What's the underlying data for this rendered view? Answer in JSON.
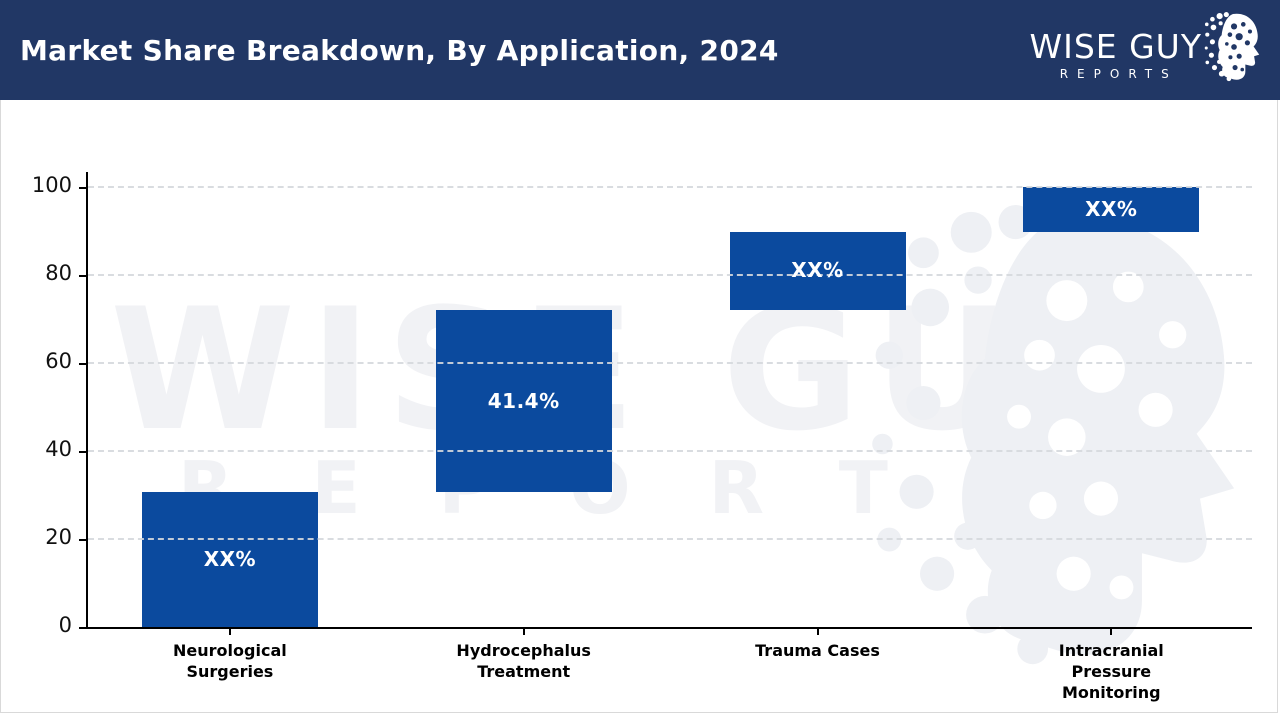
{
  "header": {
    "title": "Market Share Breakdown, By Application, 2024",
    "background": "#213765",
    "text_color": "#ffffff",
    "logo": {
      "line1": "WISE GUY",
      "line2": "REPORTS"
    }
  },
  "watermark": {
    "line1": "WISE GUY",
    "line2": "REPORTS"
  },
  "chart_data": {
    "type": "bar",
    "subtype": "floating-waterfall",
    "title": "Market Share Breakdown, By Application, 2024",
    "categories": [
      "Neurological Surgeries",
      "Hydrocephalus Treatment",
      "Trauma Cases",
      "Intracranial Pressure Monitoring"
    ],
    "category_lines": [
      [
        "Neurological",
        "Surgeries"
      ],
      [
        "Hydrocephalus",
        "Treatment"
      ],
      [
        "Trauma Cases"
      ],
      [
        "Intracranial",
        "Pressure",
        "Monitoring"
      ]
    ],
    "segments": [
      {
        "category": "Neurological Surgeries",
        "start": 0,
        "end": 30.7,
        "label": "XX%"
      },
      {
        "category": "Hydrocephalus Treatment",
        "start": 30.7,
        "end": 72.1,
        "label": "41.4%"
      },
      {
        "category": "Trauma Cases",
        "start": 72.1,
        "end": 89.8,
        "label": "XX%"
      },
      {
        "category": "Intracranial Pressure Monitoring",
        "start": 89.8,
        "end": 100,
        "label": "XX%"
      }
    ],
    "ylim": [
      0,
      100
    ],
    "yticks": [
      0,
      20,
      40,
      60,
      80,
      100
    ],
    "grid": true,
    "legend": false,
    "bar_color": "#0b4a9e",
    "bar_label_color": "#ffffff"
  }
}
